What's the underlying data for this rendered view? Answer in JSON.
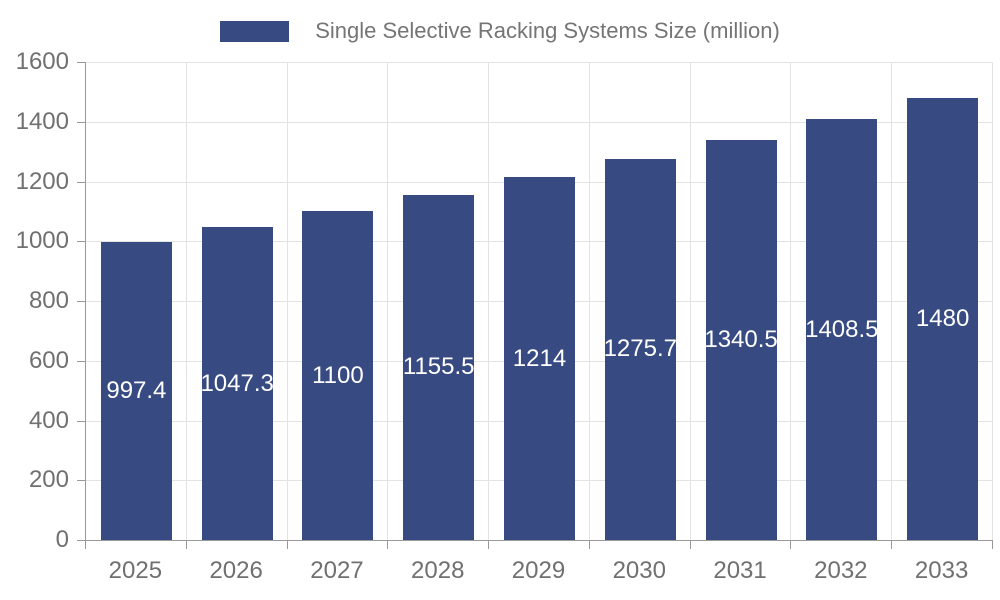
{
  "chart_data": {
    "type": "bar",
    "title": "Single Selective Racking Systems Size (million)",
    "categories": [
      "2025",
      "2026",
      "2027",
      "2028",
      "2029",
      "2030",
      "2031",
      "2032",
      "2033"
    ],
    "values": [
      997.4,
      1047.3,
      1100,
      1155.5,
      1214,
      1275.7,
      1340.5,
      1408.5,
      1480
    ],
    "series": [
      {
        "name": "Single Selective Racking Systems Size (million)",
        "values": [
          997.4,
          1047.3,
          1100,
          1155.5,
          1214,
          1275.7,
          1340.5,
          1408.5,
          1480
        ]
      }
    ],
    "xlabel": "",
    "ylabel": "",
    "ylim": [
      0,
      1600
    ],
    "ytick_step": 200,
    "grid": true,
    "legend_position": "top",
    "value_labels_position": "inside-center",
    "colors": {
      "bar": "#374a82",
      "value_label": "#ffffff",
      "axis_text": "#707070",
      "legend_text": "#757575",
      "gridline": "#e3e3e3",
      "axis_line": "#999999"
    }
  },
  "legend": {
    "label": "Single Selective Racking Systems Size (million)"
  }
}
